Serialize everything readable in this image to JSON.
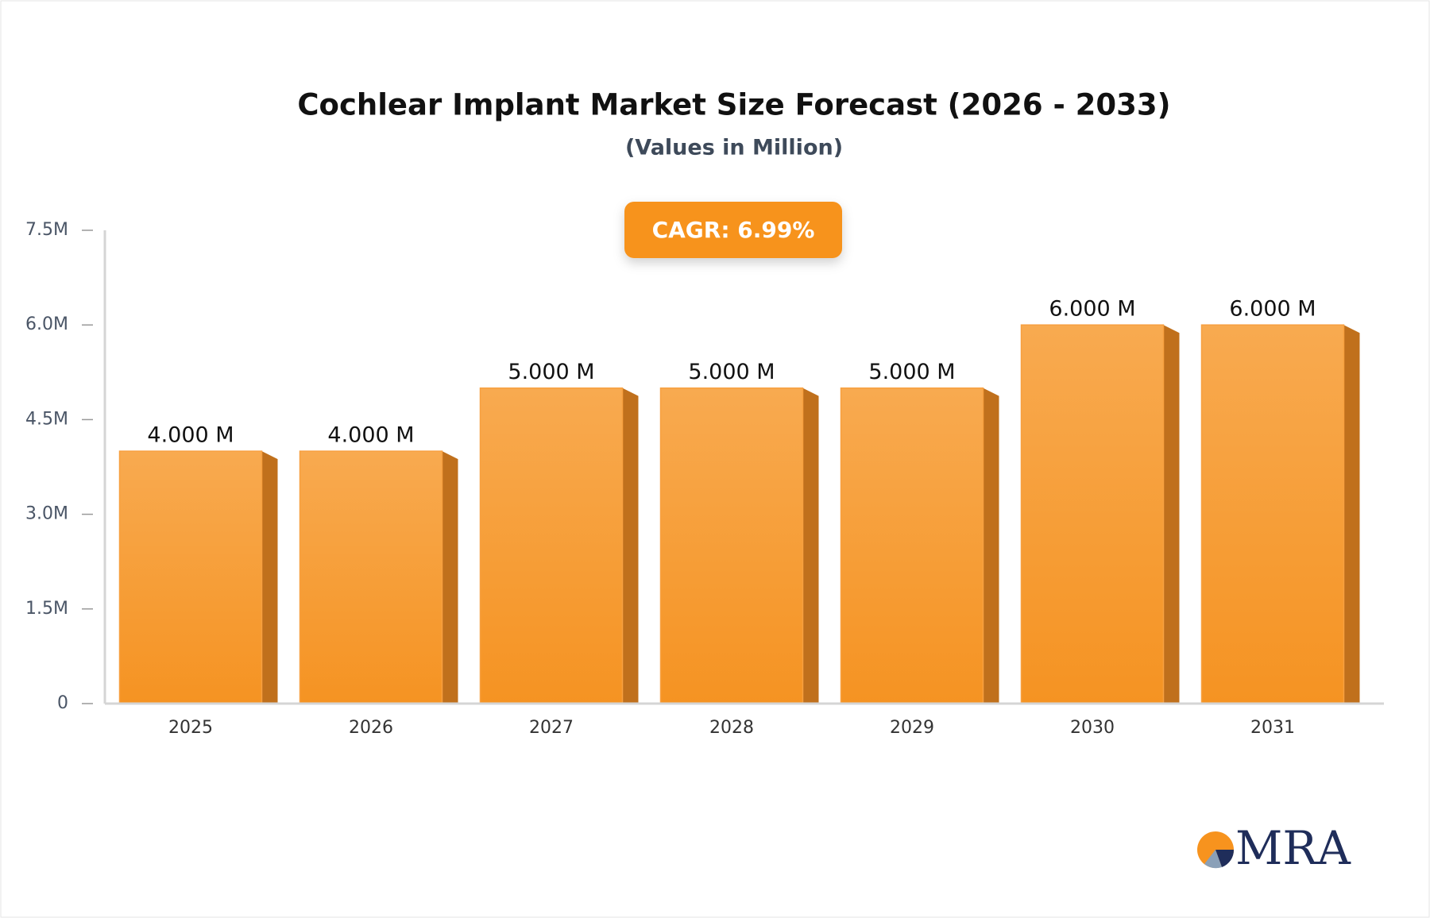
{
  "chart_data": {
    "type": "bar",
    "title": "Cochlear Implant Market Size Forecast (2026 - 2033)",
    "subtitle": "(Values in Million)",
    "annotation": "CAGR: 6.99%",
    "categories": [
      "2025",
      "2026",
      "2027",
      "2028",
      "2029",
      "2030",
      "2031"
    ],
    "values": [
      4,
      4,
      5,
      5,
      5,
      6,
      6
    ],
    "value_labels": [
      "4.000 M",
      "4.000 M",
      "5.000 M",
      "5.000 M",
      "5.000 M",
      "6.000 M",
      "6.000 M"
    ],
    "color": "#f7a040",
    "ylim": [
      0,
      7.5
    ],
    "yticks": [
      0,
      {
        "value": 1.5,
        "label": "1.5M"
      },
      {
        "value": 3,
        "label": "3.0M"
      },
      {
        "value": 4.5,
        "label": "4.5M"
      },
      {
        "value": 6,
        "label": "6.0M"
      },
      {
        "value": 7.5,
        "label": "7.5M"
      }
    ],
    "grid": false
  },
  "logo": "MRA"
}
